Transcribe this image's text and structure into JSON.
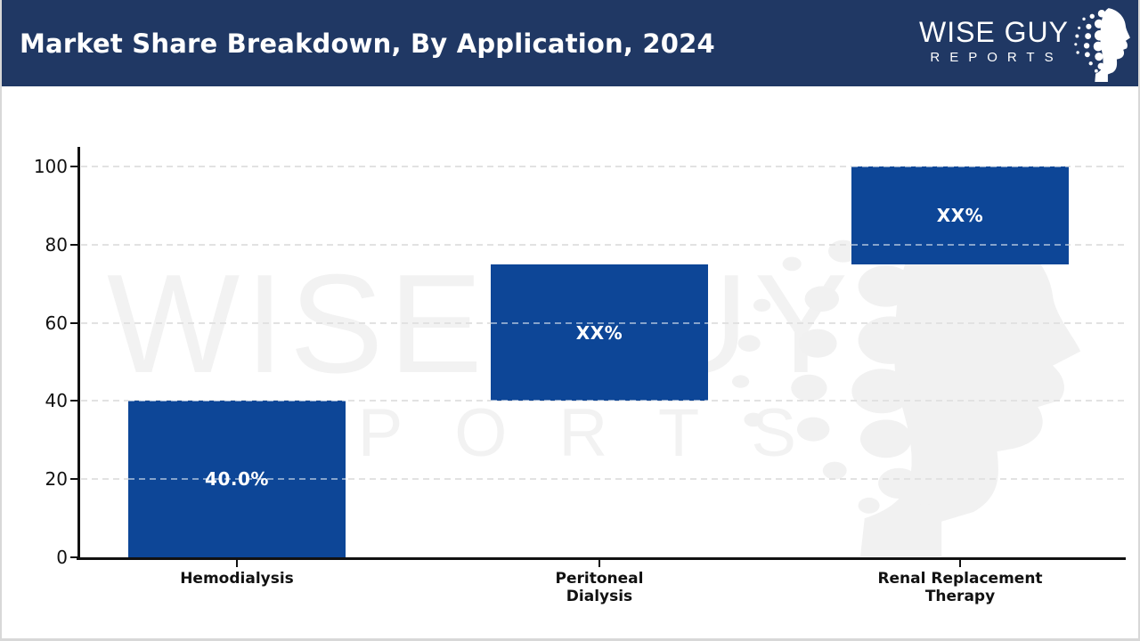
{
  "header": {
    "title": "Market Share Breakdown, By Application, 2024",
    "brand": {
      "line1": "WISE GUY",
      "line2": "REPORTS"
    }
  },
  "watermark": {
    "line1": "WISE GUY",
    "line2": "REPORTS"
  },
  "colors": {
    "header_bg": "#203864",
    "bar": "#0D4697",
    "axis": "#111111",
    "gridline": "#E2E2E2",
    "grid_over_bar": "rgba(255,255,255,0.5)",
    "watermark": "#F2F2F2",
    "border": "#D8D8D8",
    "bar_label": "#FFFFFF"
  },
  "chart_data": {
    "type": "bar",
    "subtype": "floating-waterfall",
    "title": "Market Share Breakdown, By Application, 2024",
    "categories": [
      "Hemodialysis",
      "Peritoneal\nDialysis",
      "Renal Replacement\nTherapy"
    ],
    "bars": [
      {
        "category": "Hemodialysis",
        "from": 0,
        "to": 40,
        "label": "40.0%"
      },
      {
        "category": "Peritoneal Dialysis",
        "from": 40,
        "to": 75,
        "label": "XX%"
      },
      {
        "category": "Renal Replacement Therapy",
        "from": 75,
        "to": 100,
        "label": "XX%"
      }
    ],
    "yticks": [
      0,
      20,
      40,
      60,
      80,
      100
    ],
    "ylim": [
      0,
      105
    ],
    "xlabel": "",
    "ylabel": "",
    "grid": "horizontal-dashed",
    "legend": "none"
  }
}
